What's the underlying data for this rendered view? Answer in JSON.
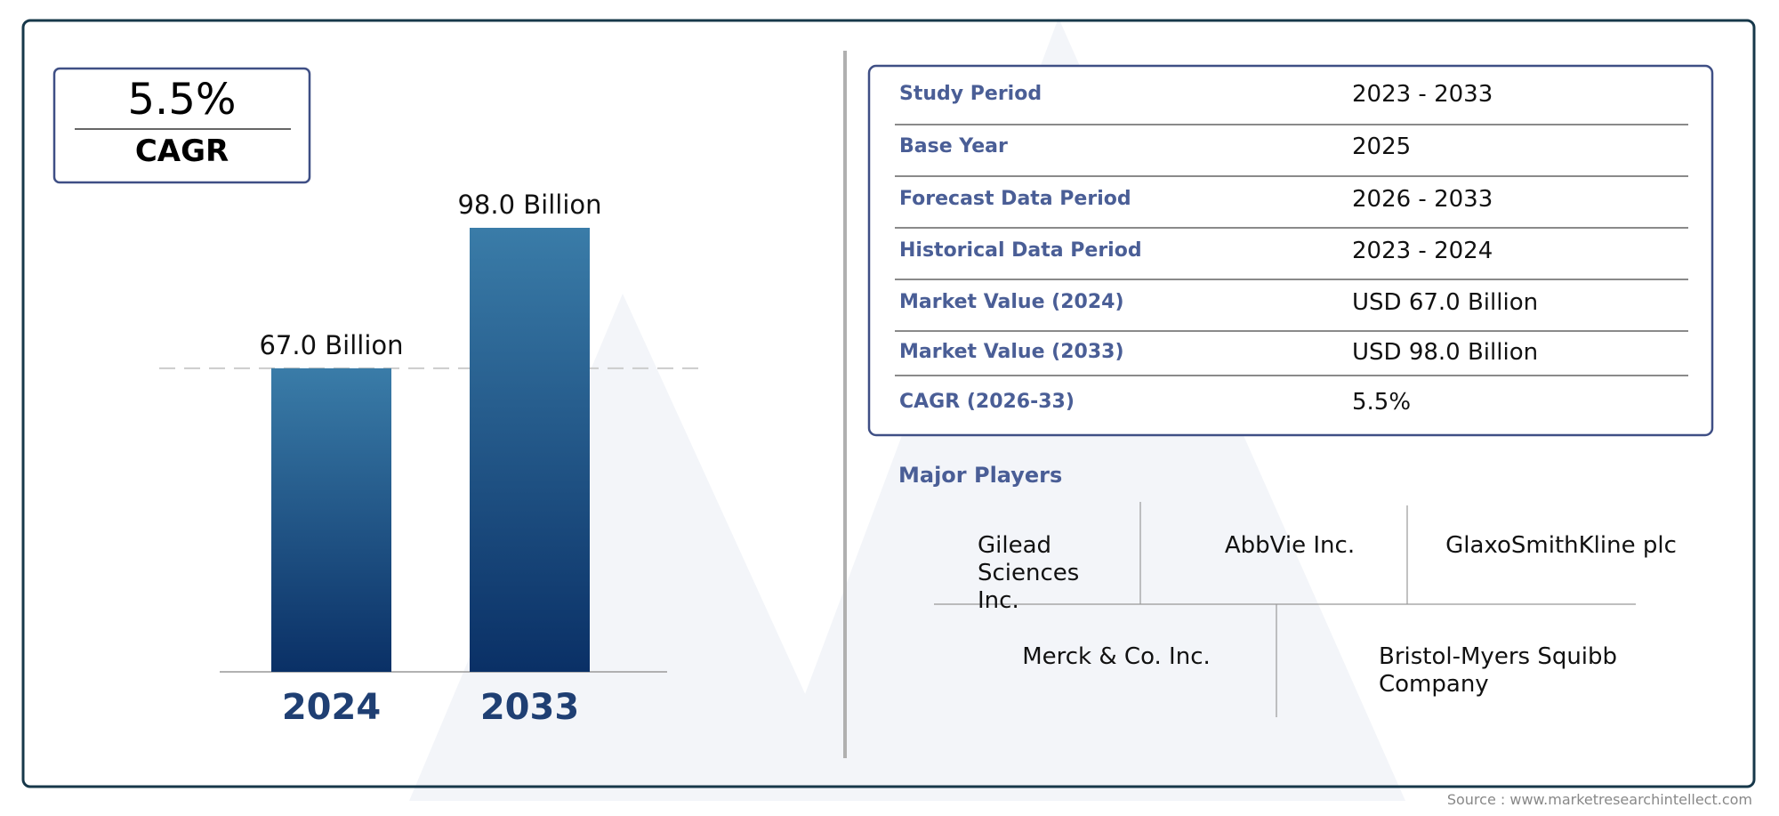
{
  "cagr_box": {
    "value": "5.5%",
    "label": "CAGR"
  },
  "chart_data": {
    "type": "bar",
    "categories": [
      "2024",
      "2033"
    ],
    "values": [
      67.0,
      98.0
    ],
    "value_labels": [
      "67.0 Billion",
      "98.0 Billion"
    ],
    "color": "#0a3066"
  },
  "summary_table": {
    "rows": [
      [
        "Study Period",
        "2023 - 2033"
      ],
      [
        "Base Year",
        "2025"
      ],
      [
        "Forecast Data Period",
        "2026 - 2033"
      ],
      [
        "Historical Data Period",
        "2023 - 2024"
      ],
      [
        "Market Value (2024)",
        "USD 67.0 Billion"
      ],
      [
        "Market Value (2033)",
        "USD 98.0 Billion"
      ],
      [
        "CAGR (2026-33)",
        "5.5%"
      ]
    ]
  },
  "major_players": {
    "title": "Major Players",
    "players": [
      "Gilead Sciences Inc.",
      "AbbVie Inc.",
      "GlaxoSmithKline plc",
      "Merck & Co. Inc.",
      "Bristol-Myers Squibb Company"
    ]
  },
  "source": "Source : www.marketresearchintellect.com"
}
